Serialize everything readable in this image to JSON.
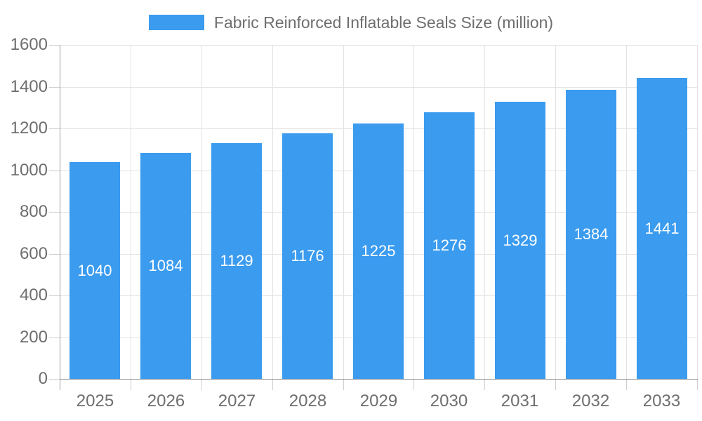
{
  "legend": {
    "label": "Fabric Reinforced Inflatable Seals Size (million)"
  },
  "colors": {
    "bar": "#3A9BEF",
    "axis_line": "#9C9C9C",
    "grid_line": "#E3E3E3",
    "tick_line": "#CFCFCF",
    "axis_label": "#6E6E6E",
    "value_label": "#FFFFFF",
    "background": "#FFFFFF"
  },
  "chart_data": {
    "type": "bar",
    "title": "Fabric Reinforced Inflatable Seals Size (million)",
    "series_name": "Fabric Reinforced Inflatable Seals Size (million)",
    "categories": [
      "2025",
      "2026",
      "2027",
      "2028",
      "2029",
      "2030",
      "2031",
      "2032",
      "2033"
    ],
    "values": [
      1040,
      1084,
      1129,
      1176,
      1225,
      1276,
      1329,
      1384,
      1441
    ],
    "xlabel": "",
    "ylabel": "",
    "ylim": [
      0,
      1600
    ],
    "ytick_interval": 200,
    "ytick_labels": [
      "0",
      "200",
      "400",
      "600",
      "800",
      "1000",
      "1200",
      "1400",
      "1600"
    ],
    "grid": true,
    "legend_position": "top",
    "value_label_position": "inside-middle"
  }
}
